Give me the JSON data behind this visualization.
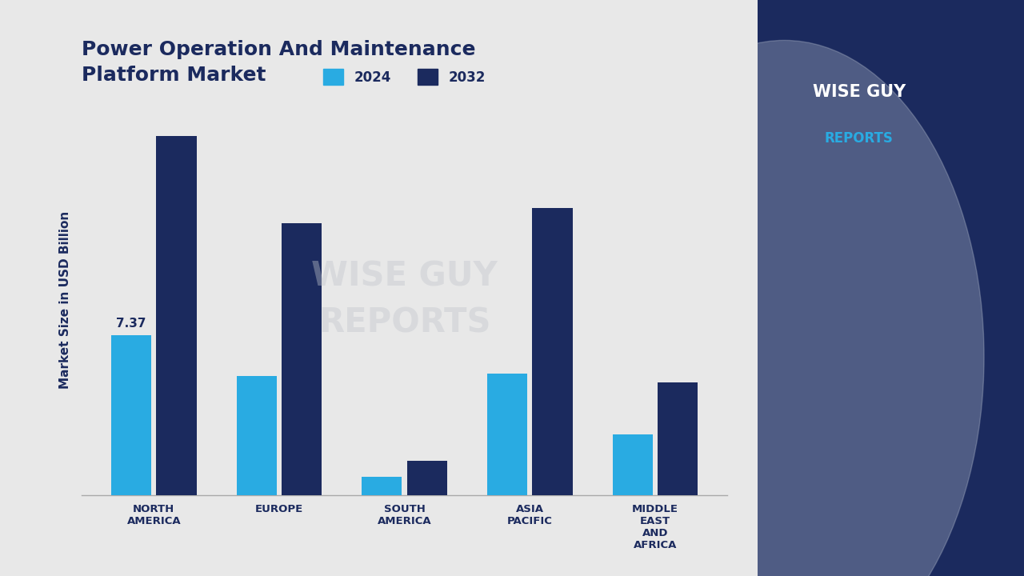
{
  "title": "Power Operation And Maintenance\nPlatform Market",
  "ylabel": "Market Size in USD Billion",
  "categories": [
    "NORTH\nAMERICA",
    "EUROPE",
    "SOUTH\nAMERICA",
    "ASIA\nPACIFIC",
    "MIDDLE\nEAST\nAND\nAFRICA"
  ],
  "values_2024": [
    7.37,
    5.5,
    0.85,
    5.6,
    2.8
  ],
  "values_2032": [
    16.5,
    12.5,
    1.6,
    13.2,
    5.2
  ],
  "color_2024": "#29ABE2",
  "color_2032": "#1B2A5E",
  "annotation_label": "7.37",
  "annotation_region": 0,
  "bg_color": "#E8E8E8",
  "right_panel_color": "#1B2A5E",
  "title_color": "#1B2A5E",
  "legend_2024": "2024",
  "legend_2032": "2032",
  "ylim": [
    0,
    18
  ]
}
